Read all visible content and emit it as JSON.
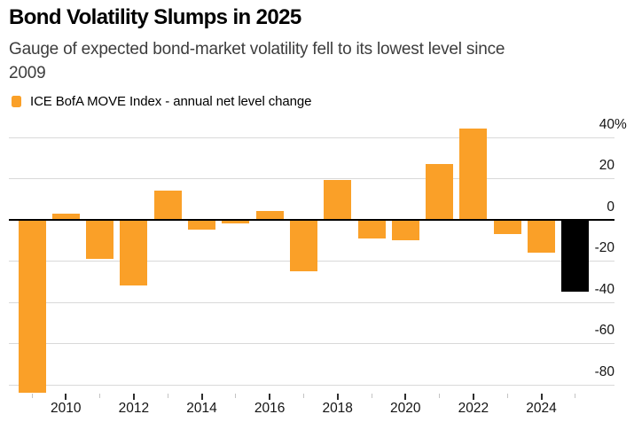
{
  "header": {
    "title": "Bond Volatility Slumps in 2025",
    "subtitle_lines": [
      "Gauge of expected bond-market volatility fell to its lowest level since",
      "2009"
    ]
  },
  "legend": {
    "label": "ICE BofA MOVE Index - annual net level change"
  },
  "colors": {
    "bar_orange": "#FAA028",
    "bar_black": "#000000",
    "gridline": "#D9D9D9",
    "zero_line": "#000000",
    "tick_dark": "#2E2E2E",
    "tick_light": "#C4C4C4",
    "axis_text": "#141414",
    "subtitle_gray": "#3D3D3D"
  },
  "chart_data": {
    "type": "bar",
    "title": "Bond Volatility Slumps in 2025",
    "series_name": "ICE BofA MOVE Index - annual net level change",
    "categories": [
      "2009",
      "2010",
      "2011",
      "2012",
      "2013",
      "2014",
      "2015",
      "2016",
      "2017",
      "2018",
      "2019",
      "2020",
      "2021",
      "2022",
      "2023",
      "2024",
      "2025"
    ],
    "values": [
      -84,
      3,
      -19,
      -32,
      14,
      -5,
      -2,
      4,
      -25,
      19,
      -9,
      -10,
      27,
      44,
      -7,
      -16,
      -35
    ],
    "bar_colors": [
      "#FAA028",
      "#FAA028",
      "#FAA028",
      "#FAA028",
      "#FAA028",
      "#FAA028",
      "#FAA028",
      "#FAA028",
      "#FAA028",
      "#FAA028",
      "#FAA028",
      "#FAA028",
      "#FAA028",
      "#FAA028",
      "#FAA028",
      "#FAA028",
      "#000000"
    ],
    "highlight_index": 16,
    "xlabel": "",
    "ylabel": "",
    "ylim": [
      -84,
      45
    ],
    "grid": true,
    "legend_position": "top-left",
    "yticks": [
      {
        "value": 40,
        "label": "40",
        "suffix": "%"
      },
      {
        "value": 20,
        "label": "20",
        "suffix": ""
      },
      {
        "value": 0,
        "label": "0",
        "suffix": ""
      },
      {
        "value": -20,
        "label": "-20",
        "suffix": ""
      },
      {
        "value": -40,
        "label": "-40",
        "suffix": ""
      },
      {
        "value": -60,
        "label": "-60",
        "suffix": ""
      },
      {
        "value": -80,
        "label": "-80",
        "suffix": ""
      }
    ],
    "x_labeled_years": [
      "2010",
      "2012",
      "2014",
      "2016",
      "2018",
      "2020",
      "2022",
      "2024"
    ]
  }
}
